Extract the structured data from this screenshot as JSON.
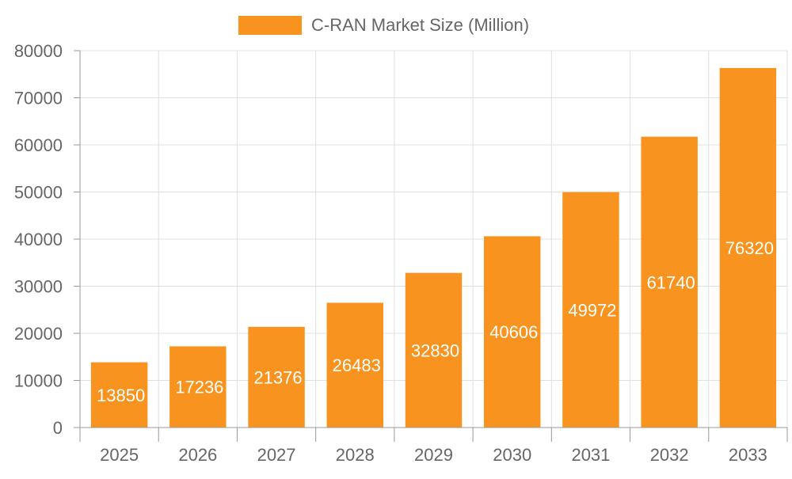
{
  "chart_data": {
    "type": "bar",
    "title": "",
    "xlabel": "",
    "ylabel": "",
    "categories": [
      "2025",
      "2026",
      "2027",
      "2028",
      "2029",
      "2030",
      "2031",
      "2032",
      "2033"
    ],
    "series": [
      {
        "name": "C-RAN Market Size (Million)",
        "color": "#f7931e",
        "values": [
          13850,
          17236,
          21376,
          26483,
          32830,
          40606,
          49972,
          61740,
          76320
        ]
      }
    ],
    "ylim": [
      0,
      80000
    ],
    "yticks": [
      "0",
      "10000",
      "20000",
      "30000",
      "40000",
      "50000",
      "60000",
      "70000",
      "80000"
    ],
    "grid": true,
    "legend_position": "top-center",
    "data_labels": true,
    "data_label_color": "#ffffff"
  }
}
